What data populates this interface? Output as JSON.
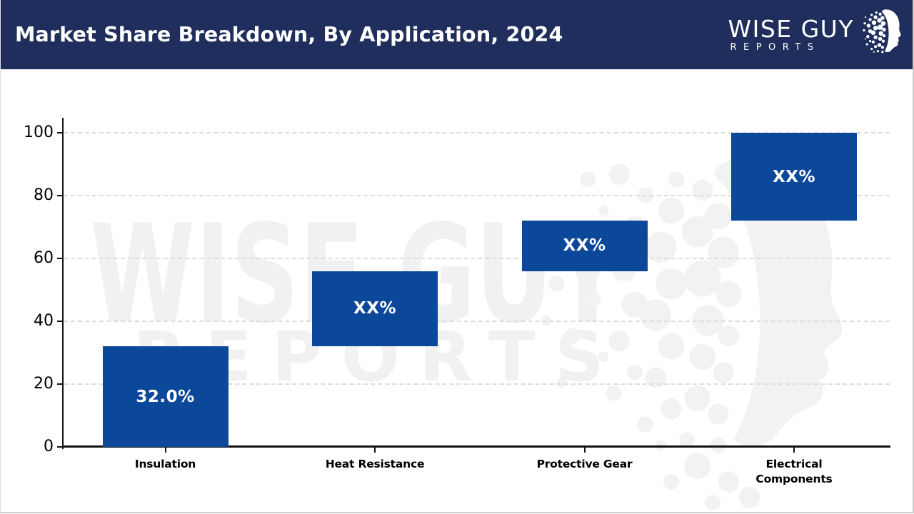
{
  "page": {
    "border_color": "#cccccc",
    "background": "#ffffff"
  },
  "header": {
    "bg_color": "#1f2e5c",
    "title": "Market Share Breakdown, By Application, 2024",
    "logo": {
      "brand_line1": "WISE GUY",
      "brand_line2": "REPORTS"
    }
  },
  "watermark": {
    "line1": "WISE GUY",
    "line2": "REPORTS"
  },
  "chart_data": {
    "type": "bar",
    "subtype": "waterfall-style floating bars",
    "title": "Market Share Breakdown, By Application, 2024",
    "categories": [
      "Insulation",
      "Heat Resistance",
      "Protective Gear",
      "Electrical Components"
    ],
    "segments": [
      {
        "category": "Insulation",
        "start": 0,
        "end": 32,
        "value": 32,
        "label": "32.0%"
      },
      {
        "category": "Heat Resistance",
        "start": 32,
        "end": 56,
        "value": 24,
        "label": "XX%"
      },
      {
        "category": "Protective Gear",
        "start": 56,
        "end": 72,
        "value": 16,
        "label": "XX%"
      },
      {
        "category": "Electrical Components",
        "start": 72,
        "end": 100,
        "value": 28,
        "label": "XX%"
      }
    ],
    "xlabel": "",
    "ylabel": "",
    "ylim": [
      0,
      100
    ],
    "yticks": [
      0,
      20,
      40,
      60,
      80,
      100
    ],
    "grid": {
      "horizontal": true,
      "style": "dashed",
      "color": "#dcdcdc"
    },
    "bar_color": "#0c4899",
    "bar_label_color": "#ffffff",
    "axis_color": "#111111",
    "legend": "none"
  }
}
